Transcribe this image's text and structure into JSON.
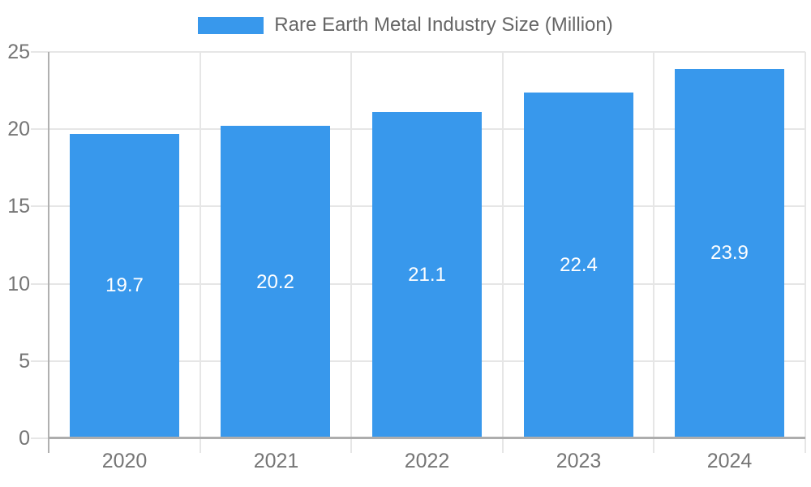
{
  "legend": {
    "label": "Rare Earth Metal Industry Size (Million)"
  },
  "chart_data": {
    "type": "bar",
    "title": "",
    "series_name": "Rare Earth Metal Industry Size (Million)",
    "categories": [
      "2020",
      "2021",
      "2022",
      "2023",
      "2024"
    ],
    "values": [
      19.7,
      20.2,
      21.1,
      22.4,
      23.9
    ],
    "value_labels": [
      "19.7",
      "20.2",
      "21.1",
      "22.4",
      "23.9"
    ],
    "xlabel": "",
    "ylabel": "",
    "ylim": [
      0,
      25
    ],
    "yticks": [
      0,
      5,
      10,
      15,
      20,
      25
    ],
    "grid": true,
    "legend_position": "top",
    "bar_color": "#3898EC",
    "value_label_color": "#FFFFFF",
    "axis_text_color": "#757575",
    "legend_text_color": "#666666",
    "gridline_color": "#E6E6E6",
    "axis_line_color": "#B0B0B0"
  }
}
